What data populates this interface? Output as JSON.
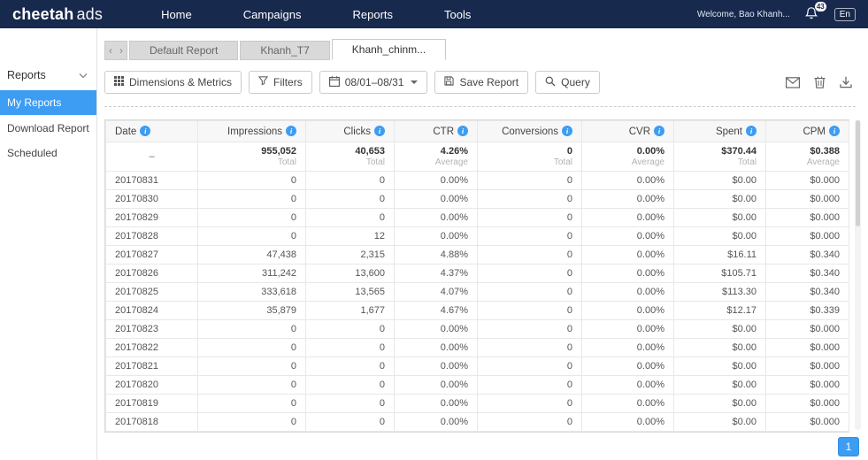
{
  "navbar": {
    "brand_bold": "cheetah",
    "brand_light": "ads",
    "items": [
      "Home",
      "Campaigns",
      "Reports",
      "Tools"
    ],
    "welcome": "Welcome,  Bao Khanh...",
    "notification_count": "43",
    "language": "En"
  },
  "sidebar": {
    "section_label": "Reports",
    "items": [
      "My Reports",
      "Download Report",
      "Scheduled"
    ],
    "active_item": "My Reports"
  },
  "tabs": {
    "prev_arrow": "‹",
    "next_arrow": "›",
    "items": [
      "Default Report",
      "Khanh_T7",
      "Khanh_chinm..."
    ],
    "active": "Khanh_chinm..."
  },
  "toolbar": {
    "dimensions_metrics": "Dimensions & Metrics",
    "filters": "Filters",
    "date_range": "08/01–08/31",
    "save_report": "Save Report",
    "query": "Query"
  },
  "table": {
    "columns": [
      "Date",
      "Impressions",
      "Clicks",
      "CTR",
      "Conversions",
      "CVR",
      "Spent",
      "CPM"
    ],
    "totals": {
      "date": "–",
      "values": [
        "955,052",
        "40,653",
        "4.26%",
        "0",
        "0.00%",
        "$370.44",
        "$0.388"
      ],
      "sublabels": [
        "Total",
        "Total",
        "Average",
        "Total",
        "Average",
        "Total",
        "Average"
      ]
    },
    "rows": [
      [
        "20170831",
        "0",
        "0",
        "0.00%",
        "0",
        "0.00%",
        "$0.00",
        "$0.000"
      ],
      [
        "20170830",
        "0",
        "0",
        "0.00%",
        "0",
        "0.00%",
        "$0.00",
        "$0.000"
      ],
      [
        "20170829",
        "0",
        "0",
        "0.00%",
        "0",
        "0.00%",
        "$0.00",
        "$0.000"
      ],
      [
        "20170828",
        "0",
        "12",
        "0.00%",
        "0",
        "0.00%",
        "$0.00",
        "$0.000"
      ],
      [
        "20170827",
        "47,438",
        "2,315",
        "4.88%",
        "0",
        "0.00%",
        "$16.11",
        "$0.340"
      ],
      [
        "20170826",
        "311,242",
        "13,600",
        "4.37%",
        "0",
        "0.00%",
        "$105.71",
        "$0.340"
      ],
      [
        "20170825",
        "333,618",
        "13,565",
        "4.07%",
        "0",
        "0.00%",
        "$113.30",
        "$0.340"
      ],
      [
        "20170824",
        "35,879",
        "1,677",
        "4.67%",
        "0",
        "0.00%",
        "$12.17",
        "$0.339"
      ],
      [
        "20170823",
        "0",
        "0",
        "0.00%",
        "0",
        "0.00%",
        "$0.00",
        "$0.000"
      ],
      [
        "20170822",
        "0",
        "0",
        "0.00%",
        "0",
        "0.00%",
        "$0.00",
        "$0.000"
      ],
      [
        "20170821",
        "0",
        "0",
        "0.00%",
        "0",
        "0.00%",
        "$0.00",
        "$0.000"
      ],
      [
        "20170820",
        "0",
        "0",
        "0.00%",
        "0",
        "0.00%",
        "$0.00",
        "$0.000"
      ],
      [
        "20170819",
        "0",
        "0",
        "0.00%",
        "0",
        "0.00%",
        "$0.00",
        "$0.000"
      ],
      [
        "20170818",
        "0",
        "0",
        "0.00%",
        "0",
        "0.00%",
        "$0.00",
        "$0.000"
      ]
    ]
  },
  "pagination": {
    "page": "1"
  }
}
